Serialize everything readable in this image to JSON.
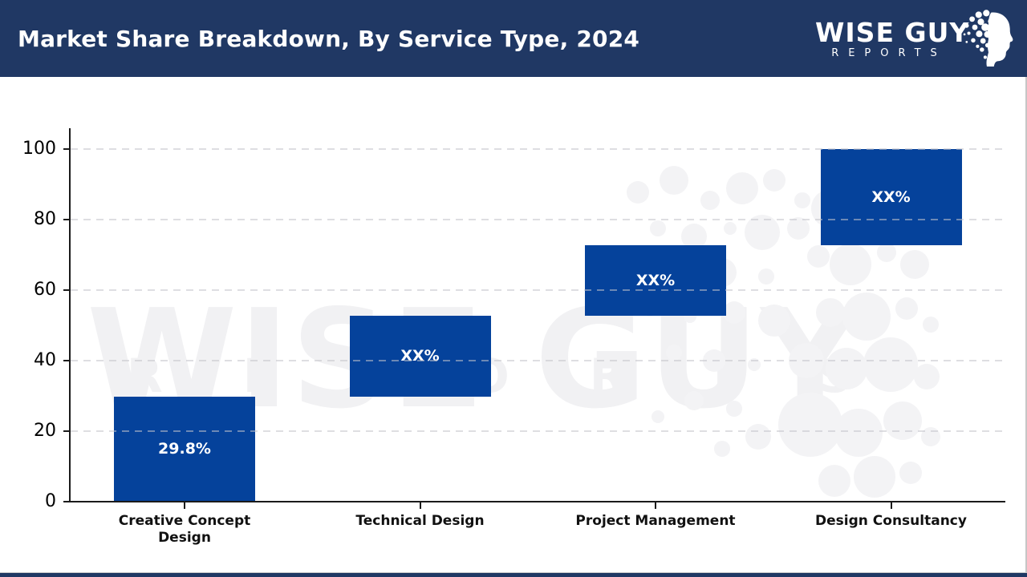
{
  "header": {
    "title": "Market Share Breakdown, By Service Type, 2024",
    "logo": {
      "line1": "WISE GUY",
      "line2": "REPORTS"
    }
  },
  "watermark": {
    "line1": "WISE GUY",
    "line2": "REPORTS"
  },
  "colors": {
    "header_bg": "#203864",
    "bar": "#05429b",
    "axis": "#1a1a1a",
    "watermark": "#f1f1f3",
    "bar_label": "#ffffff"
  },
  "chart_data": {
    "type": "bar",
    "variant": "floating-waterfall",
    "title": "Market Share Breakdown, By Service Type, 2024",
    "categories": [
      "Creative Concept Design",
      "Technical Design",
      "Project Management",
      "Design Consultancy"
    ],
    "bars": [
      {
        "category": "Creative Concept Design",
        "start": 0,
        "end": 29.8,
        "label": "29.8%"
      },
      {
        "category": "Technical Design",
        "start": 29.8,
        "end": 52.8,
        "label": "XX%"
      },
      {
        "category": "Project Management",
        "start": 52.8,
        "end": 72.8,
        "label": "XX%"
      },
      {
        "category": "Design Consultancy",
        "start": 72.8,
        "end": 100,
        "label": "XX%"
      }
    ],
    "xlabel": "",
    "ylabel": "",
    "yticks": [
      0,
      20,
      40,
      60,
      80,
      100
    ],
    "ylim": [
      0,
      106
    ],
    "grid": "dashed horizontal, drawn over bars",
    "legend": "none"
  }
}
